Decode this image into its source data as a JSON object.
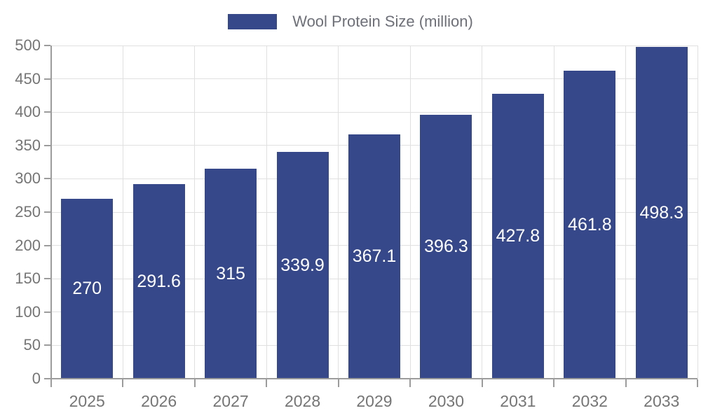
{
  "legend": {
    "label": "Wool Protein Size (million)"
  },
  "chart_data": {
    "type": "bar",
    "title": "Wool Protein Size (million)",
    "categories": [
      "2025",
      "2026",
      "2027",
      "2028",
      "2029",
      "2030",
      "2031",
      "2032",
      "2033"
    ],
    "values": [
      270,
      291.6,
      315,
      339.9,
      367.1,
      396.3,
      427.8,
      461.8,
      498.3
    ],
    "series_name": "Wool Protein Size (million)",
    "xlabel": "",
    "ylabel": "",
    "ylim": [
      0,
      500
    ],
    "ytick_step": 50,
    "grid": true,
    "legend_position": "top",
    "value_labels": "inside-center",
    "colors": {
      "bar": "#36488a",
      "grid": "#e0e0e0",
      "axis": "#9c9c9c",
      "tick_label": "#757575",
      "legend_text": "#6e7079",
      "value_label": "#ffffff",
      "background": "#ffffff"
    }
  }
}
